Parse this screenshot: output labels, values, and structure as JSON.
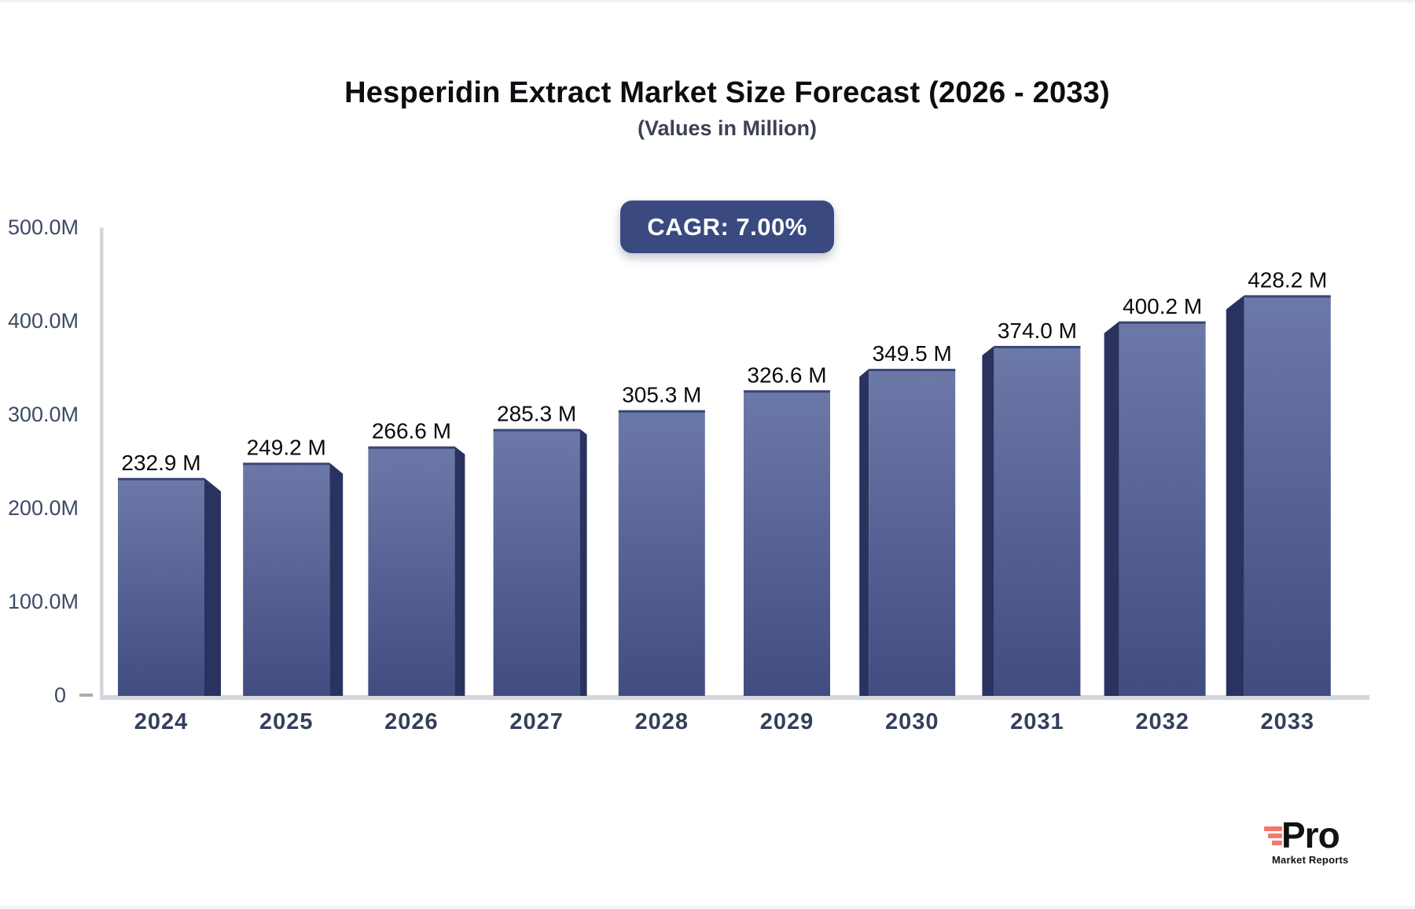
{
  "header": {
    "title": "Hesperidin Extract Market Size Forecast (2026 - 2033)",
    "subtitle": "(Values in Million)",
    "cagr_label": "CAGR: 7.00%",
    "badge_color": "#3A4A80"
  },
  "chart_data": {
    "type": "bar",
    "title": "Hesperidin Extract Market Size Forecast (2026 - 2033)",
    "subtitle": "(Values in Million)",
    "cagr": "7.00%",
    "categories": [
      "2024",
      "2025",
      "2026",
      "2027",
      "2028",
      "2029",
      "2030",
      "2031",
      "2032",
      "2033"
    ],
    "values": [
      232.9,
      249.2,
      266.6,
      285.3,
      305.3,
      326.6,
      349.5,
      374.0,
      400.2,
      428.2
    ],
    "value_labels": [
      "232.9 M",
      "249.2 M",
      "266.6 M",
      "285.3 M",
      "305.3 M",
      "326.6 M",
      "349.5 M",
      "374.0 M",
      "400.2 M",
      "428.2 M"
    ],
    "unit": "Million",
    "y_ticks": [
      {
        "label": "0",
        "value": 0
      },
      {
        "label": "100.0M",
        "value": 100
      },
      {
        "label": "200.0M",
        "value": 200
      },
      {
        "label": "300.0M",
        "value": 300
      },
      {
        "label": "400.0M",
        "value": 400
      },
      {
        "label": "500.0M",
        "value": 500
      }
    ],
    "ylim": [
      0,
      500
    ],
    "grid": false,
    "legend": false,
    "bar_color_top": "#6C79A8",
    "bar_color_bottom": "#414C80",
    "bar_top_edge_color": "#3A4577",
    "bar_side_color": "#2A335F",
    "axis_color": "#D4D6DD",
    "zero_dash_color": "#A9ACB6",
    "value_label_color": "#0B0B0E",
    "x_label_color": "#353F5B",
    "y_label_color": "#3E4A66"
  },
  "footer": {
    "logo": {
      "brand": "Pro",
      "tagline": "Market Reports",
      "accent_color": "#F4766C"
    }
  }
}
